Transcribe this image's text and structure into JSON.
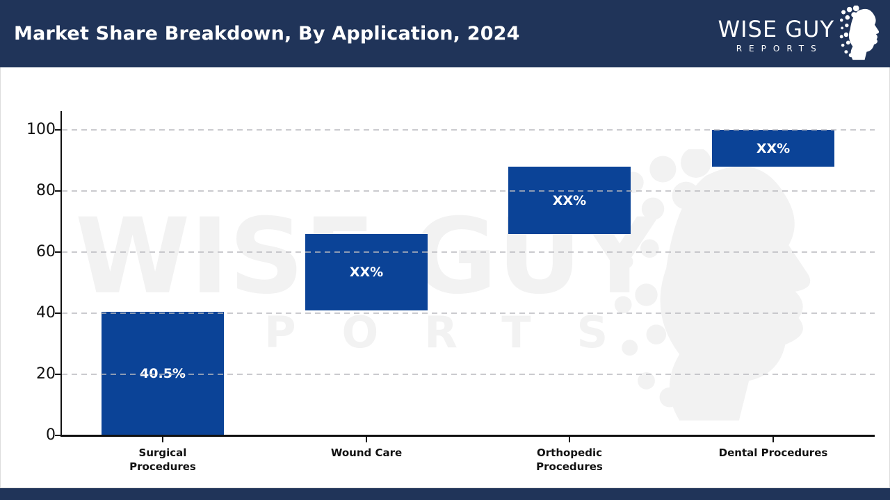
{
  "header": {
    "title": "Market Share Breakdown, By Application, 2024",
    "logo": {
      "name": "WISE GUY",
      "sub": "REPORTS"
    }
  },
  "watermark": {
    "big": "WISE GUY",
    "sub": "REPORTS"
  },
  "chart_data": {
    "type": "bar",
    "subtype": "waterfall-floating-bars",
    "title": "Market Share Breakdown, By Application, 2024",
    "categories": [
      "Surgical\nProcedures",
      "Wound Care",
      "Orthopedic\nProcedures",
      "Dental Procedures"
    ],
    "series": [
      {
        "name": "Market Share (%)",
        "segments": [
          {
            "category": "Surgical Procedures",
            "start": 0,
            "end": 40.5,
            "label": "40.5%"
          },
          {
            "category": "Wound Care",
            "start": 41,
            "end": 66,
            "label": "XX%"
          },
          {
            "category": "Orthopedic Procedures",
            "start": 66,
            "end": 88,
            "label": "XX%"
          },
          {
            "category": "Dental Procedures",
            "start": 88,
            "end": 100,
            "label": "XX%"
          }
        ]
      }
    ],
    "xlabel": "",
    "ylabel": "",
    "ylim": [
      0,
      100
    ],
    "yticks": [
      0,
      20,
      40,
      60,
      80,
      100
    ],
    "grid": "horizontal-dashed",
    "legend": "none",
    "colors": {
      "bar": "#0b4397",
      "bar_label": "#ffffff",
      "grid": "#dedede",
      "axis": "#111111",
      "header_bg": "#203459",
      "footer_bg": "#203459",
      "watermark": "#f2f2f2",
      "background": "#ffffff"
    }
  }
}
